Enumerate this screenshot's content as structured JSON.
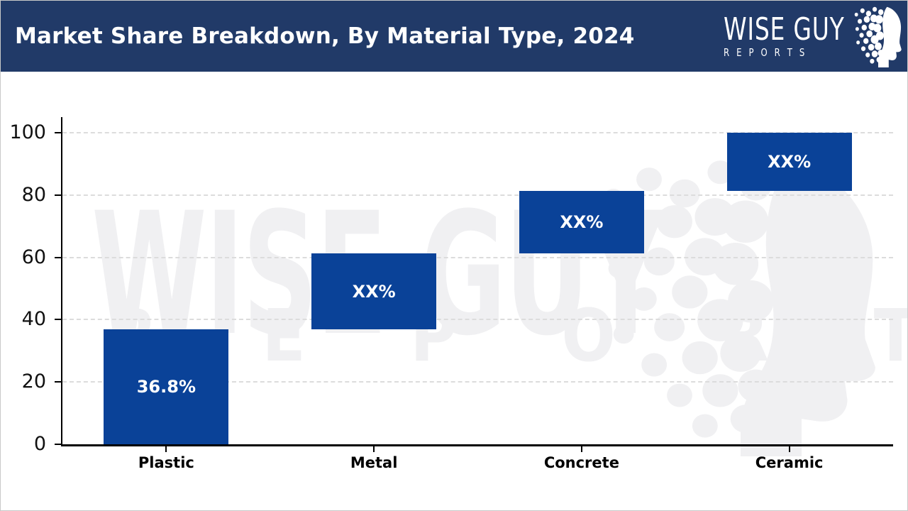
{
  "header": {
    "title": "Market Share Breakdown, By Material Type, 2024",
    "logo": {
      "line1": "WISE GUY",
      "line2": "R E P O R T S"
    }
  },
  "watermark": {
    "line1": "WISE GUY",
    "line2": "R E P O R T S"
  },
  "colors": {
    "header_bg": "#213a68",
    "bar": "#0a4298",
    "bar_label": "#ffffff",
    "grid": "#dcdcdc",
    "axis": "#000000",
    "watermark": "#f0f0f2"
  },
  "chart_data": {
    "type": "bar",
    "variant": "waterfall-floating-bars",
    "title": "Market Share Breakdown, By Material Type, 2024",
    "xlabel": "",
    "ylabel": "",
    "categories": [
      "Plastic",
      "Metal",
      "Concrete",
      "Ceramic"
    ],
    "segments": [
      {
        "category": "Plastic",
        "start": 0,
        "end": 36.8,
        "label": "36.8%"
      },
      {
        "category": "Metal",
        "start": 36.8,
        "end": 61.2,
        "label": "XX%"
      },
      {
        "category": "Concrete",
        "start": 61.2,
        "end": 81.4,
        "label": "XX%"
      },
      {
        "category": "Ceramic",
        "start": 81.4,
        "end": 100,
        "label": "XX%"
      }
    ],
    "ylim": [
      0,
      105
    ],
    "yticks": [
      0,
      20,
      40,
      60,
      80,
      100
    ],
    "grid": "horizontal-dashed",
    "legend": "none"
  }
}
